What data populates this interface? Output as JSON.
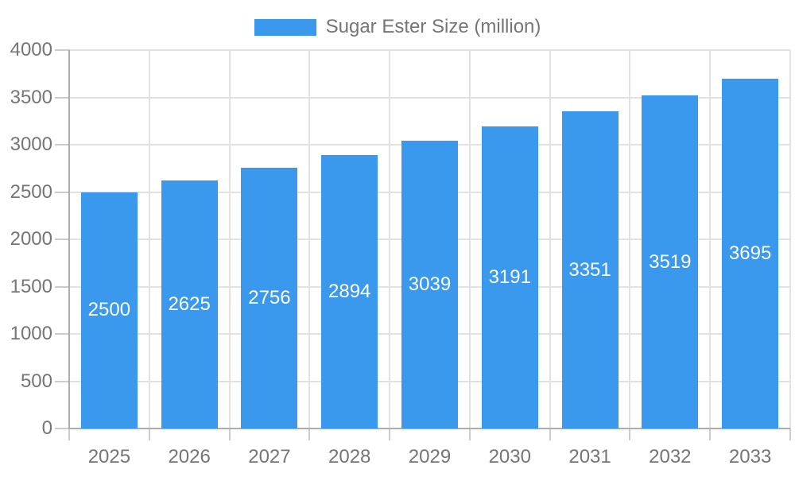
{
  "chart_data": {
    "type": "bar",
    "title": "",
    "categories": [
      "2025",
      "2026",
      "2027",
      "2028",
      "2029",
      "2030",
      "2031",
      "2032",
      "2033"
    ],
    "series": [
      {
        "name": "Sugar Ester Size (million)",
        "values": [
          2500,
          2625,
          2756,
          2894,
          3039,
          3191,
          3351,
          3519,
          3695
        ]
      }
    ],
    "value_labels_shown": true,
    "xlabel": "",
    "ylabel": "",
    "ylim": [
      0,
      4000
    ],
    "yticks": [
      0,
      500,
      1000,
      1500,
      2000,
      2500,
      3000,
      3500,
      4000
    ],
    "grid": true,
    "legend_position": "top-center",
    "colors": {
      "bar": "#3B99ED",
      "grid": "#E2E2E2",
      "axis": "#ADADAD",
      "tick": "#CCCCCC",
      "label_text": "#757575",
      "value_text": "#FFFFFF",
      "background": "#FFFFFF"
    }
  }
}
